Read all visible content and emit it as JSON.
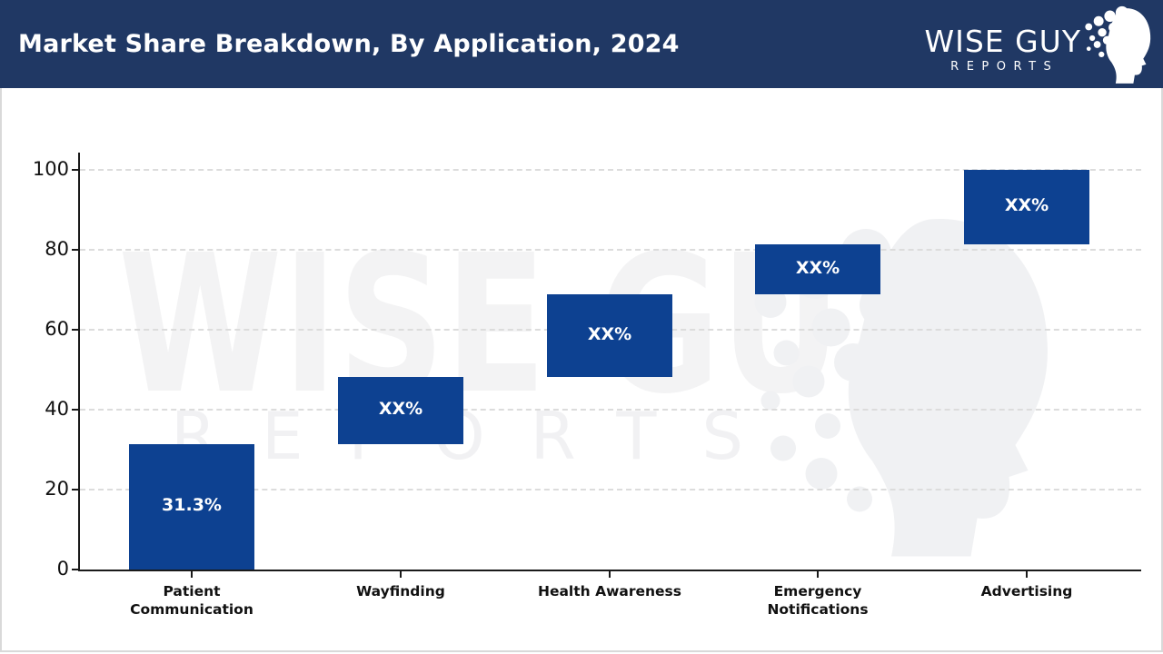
{
  "header": {
    "title": "Market Share Breakdown, By Application, 2024",
    "logo_line1": "WISE GUY",
    "logo_line2": "REPORTS"
  },
  "watermark": {
    "line1": "WISE GUY",
    "line2": "REPORTS"
  },
  "colors": {
    "header_bg": "#203864",
    "bar": "#0d4191",
    "grid": "#dcdcdc",
    "axis": "#1a1a1a",
    "title_text": "#ffffff",
    "bar_label_text": "#ffffff"
  },
  "chart_data": {
    "type": "bar",
    "subtype": "waterfall",
    "title": "Market Share Breakdown, By Application, 2024",
    "categories": [
      [
        "Patient",
        "Communication"
      ],
      [
        "Wayfinding"
      ],
      [
        "Health Awareness"
      ],
      [
        "Emergency",
        "Notifications"
      ],
      [
        "Advertising"
      ]
    ],
    "values": [
      {
        "label": "31.3%",
        "start": 0,
        "end": 31.3
      },
      {
        "label": "XX%",
        "start": 31.3,
        "end": 48.2
      },
      {
        "label": "XX%",
        "start": 48.2,
        "end": 68.9
      },
      {
        "label": "XX%",
        "start": 68.9,
        "end": 81.4
      },
      {
        "label": "XX%",
        "start": 81.4,
        "end": 100
      }
    ],
    "bar_color": "#0d4191",
    "ylim": [
      0,
      100
    ],
    "yticks": [
      0,
      20,
      40,
      60,
      80,
      100
    ],
    "grid": "horizontal-dashed",
    "legend": false,
    "xlabel": "",
    "ylabel": ""
  }
}
